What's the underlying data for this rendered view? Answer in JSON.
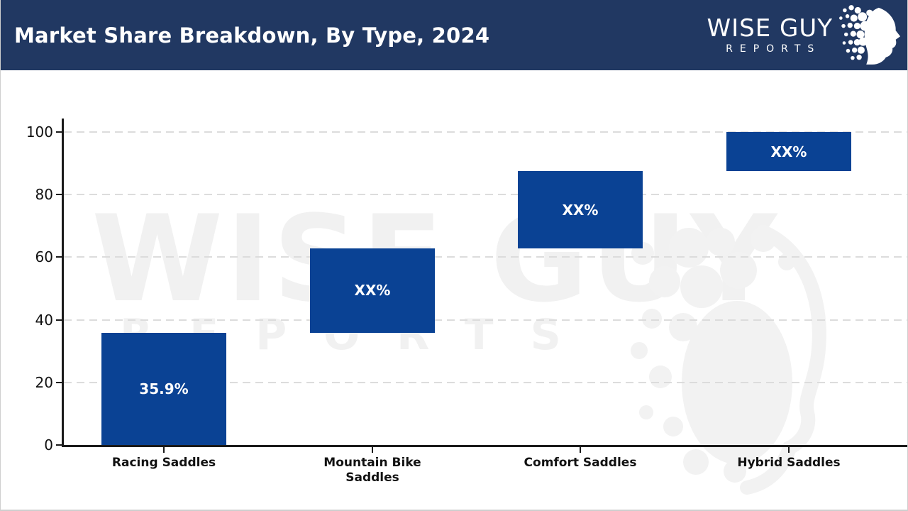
{
  "header": {
    "title": "Market Share Breakdown, By Type, 2024",
    "bg_color": "#213862",
    "logo": {
      "line1": "WISE GUY",
      "line2": "REPORTS"
    }
  },
  "watermark": {
    "line1": "WISE GUY",
    "line2": "REPORTS"
  },
  "chart_data": {
    "type": "bar",
    "subtype": "waterfall",
    "title": "Market Share Breakdown, By Type, 2024",
    "categories": [
      "Racing Saddles",
      "Mountain Bike\nSaddles",
      "Comfort Saddles",
      "Hybrid Saddles"
    ],
    "segments": [
      {
        "category": "Racing Saddles",
        "start": 0,
        "end": 35.9,
        "label": "35.9%"
      },
      {
        "category": "Mountain Bike Saddles",
        "start": 35.9,
        "end": 62.8,
        "label": "XX%"
      },
      {
        "category": "Comfort Saddles",
        "start": 62.8,
        "end": 87.5,
        "label": "XX%"
      },
      {
        "category": "Hybrid Saddles",
        "start": 87.5,
        "end": 100,
        "label": "XX%"
      }
    ],
    "y_ticks": [
      0,
      20,
      40,
      60,
      80,
      100
    ],
    "ylim": [
      0,
      104
    ],
    "xlabel": "",
    "ylabel": "",
    "grid": "horizontal-dashed",
    "legend": "none",
    "bar_color": "#0a4294",
    "bar_label_color": "#ffffff",
    "gridline_color": "#dcdcdc",
    "axis_color": "#1a1a1a"
  }
}
